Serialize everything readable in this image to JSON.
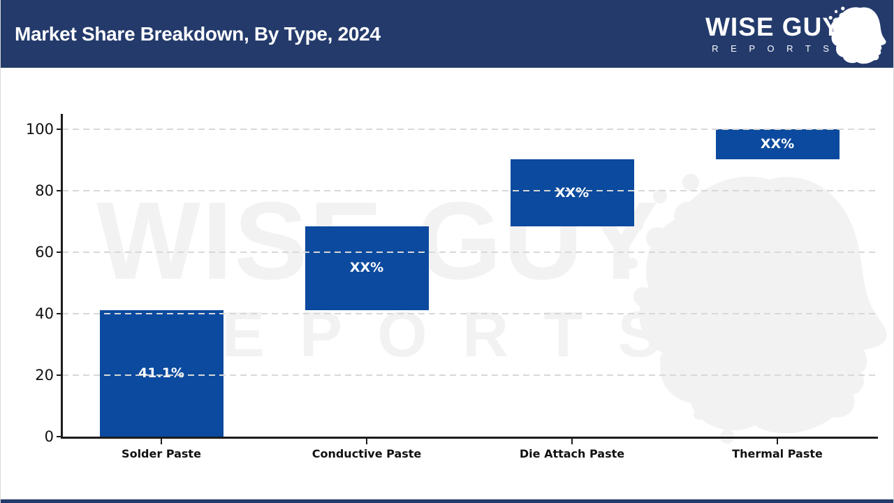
{
  "header": {
    "title": "Market Share Breakdown, By Type, 2024",
    "logo": {
      "wordmark": "WISE GUY",
      "subtitle": "R E P O R T S"
    }
  },
  "watermark": {
    "line1": "WISE GUY",
    "line2": "REPORTS"
  },
  "colors": {
    "header_navy": "#233A6B",
    "bar_blue": "#0B4A9E",
    "gridline_gray": "#D8D8D8",
    "axis_black": "#1C1C1C",
    "watermark_gray": "#F2F2F2",
    "label_white": "#FFFFFF",
    "text_black": "#111111"
  },
  "chart_data": {
    "type": "bar",
    "subtype": "waterfall",
    "title": "Market Share Breakdown, By Type, 2024",
    "categories": [
      "Solder Paste",
      "Conductive Paste",
      "Die Attach Paste",
      "Thermal Paste"
    ],
    "segments": [
      {
        "category": "Solder Paste",
        "start": 0,
        "end": 41.1,
        "label": "41.1%"
      },
      {
        "category": "Conductive Paste",
        "start": 41.1,
        "end": 68.3,
        "label": "XX%"
      },
      {
        "category": "Die Attach Paste",
        "start": 68.3,
        "end": 90.2,
        "label": "XX%"
      },
      {
        "category": "Thermal Paste",
        "start": 90.2,
        "end": 100,
        "label": "XX%"
      }
    ],
    "xlabel": "",
    "ylabel": "",
    "ylim": [
      0,
      100
    ],
    "yticks": [
      0,
      20,
      40,
      60,
      80,
      100
    ],
    "grid": "horizontal-dashed-over-bars",
    "legend": "none"
  }
}
